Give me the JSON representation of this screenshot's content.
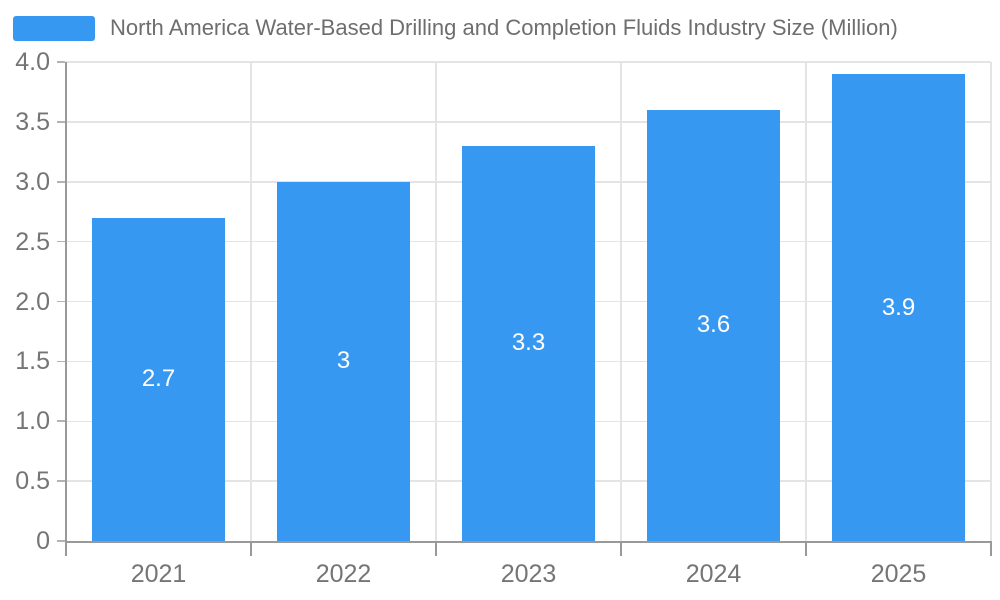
{
  "legend": {
    "label": "North America Water-Based Drilling and Completion Fluids Industry Size (Million)"
  },
  "colors": {
    "bar": "#3798f2",
    "grid": "#e4e4e4",
    "axis": "#999999",
    "y_tick": "#b3b3b3",
    "tick_label": "#757575",
    "data_label": "#ffffff",
    "legend_text": "#6e6e6e",
    "background": "#ffffff"
  },
  "chart_data": {
    "type": "bar",
    "title": "North America Water-Based Drilling and Completion Fluids Industry Size (Million)",
    "categories": [
      "2021",
      "2022",
      "2023",
      "2024",
      "2025"
    ],
    "values": [
      2.7,
      3,
      3.3,
      3.6,
      3.9
    ],
    "data_labels": [
      "2.7",
      "3",
      "3.3",
      "3.6",
      "3.9"
    ],
    "xlabel": "",
    "ylabel": "",
    "ylim": [
      0,
      4
    ],
    "ytick_values": [
      0,
      0.5,
      1,
      1.5,
      2,
      2.5,
      3,
      3.5,
      4
    ],
    "ytick_labels": [
      "0",
      "0.5",
      "1.0",
      "1.5",
      "2.0",
      "2.5",
      "3.0",
      "3.5",
      "4.0"
    ],
    "grid": true,
    "legend_position": "top-left"
  }
}
